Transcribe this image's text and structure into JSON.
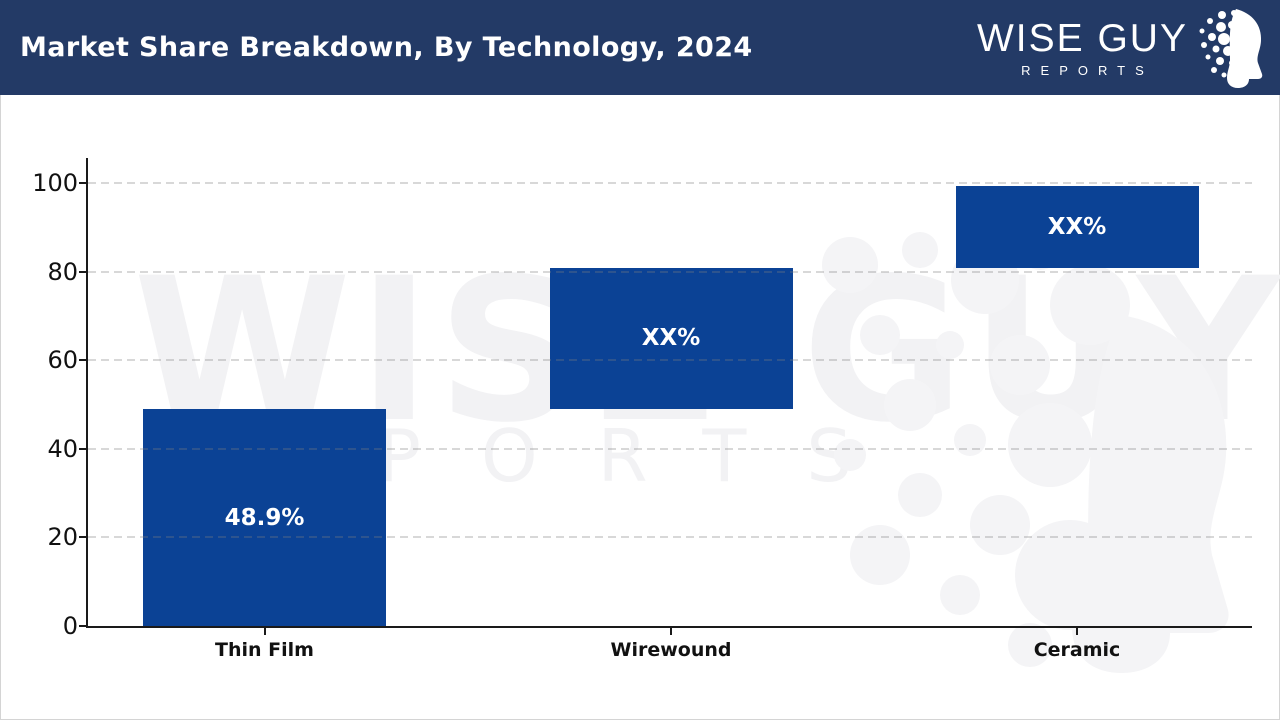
{
  "header": {
    "title": "Market Share Breakdown, By Technology, 2024",
    "bg_color": "#233a66",
    "logo": {
      "line1": "WISE GUY",
      "line2": "REPORTS"
    }
  },
  "watermark": {
    "line1": "WISE GUY",
    "line2": "REPORTS"
  },
  "colors": {
    "header_bg": "#233a66",
    "bar": "#0b4295",
    "grid": "#d9d9d9",
    "axis": "#1a1a1a",
    "bar_label": "#ffffff",
    "watermark": "#f2f2f4"
  },
  "chart_data": {
    "type": "bar",
    "subtype": "waterfall",
    "title": "Market Share Breakdown, By Technology, 2024",
    "xlabel": "",
    "ylabel": "",
    "categories": [
      "Thin Film",
      "Wirewound",
      "Ceramic"
    ],
    "segments": [
      {
        "category": "Thin Film",
        "start": 0,
        "end": 48.9,
        "label": "48.9%"
      },
      {
        "category": "Wirewound",
        "start": 48.9,
        "end": 80.9,
        "label": "XX%"
      },
      {
        "category": "Ceramic",
        "start": 80.9,
        "end": 99.4,
        "label": "XX%"
      }
    ],
    "yticks": [
      0,
      20,
      40,
      60,
      80,
      100
    ],
    "ylim": [
      0,
      105
    ],
    "grid": "horizontal-dashed",
    "legend": "none"
  }
}
